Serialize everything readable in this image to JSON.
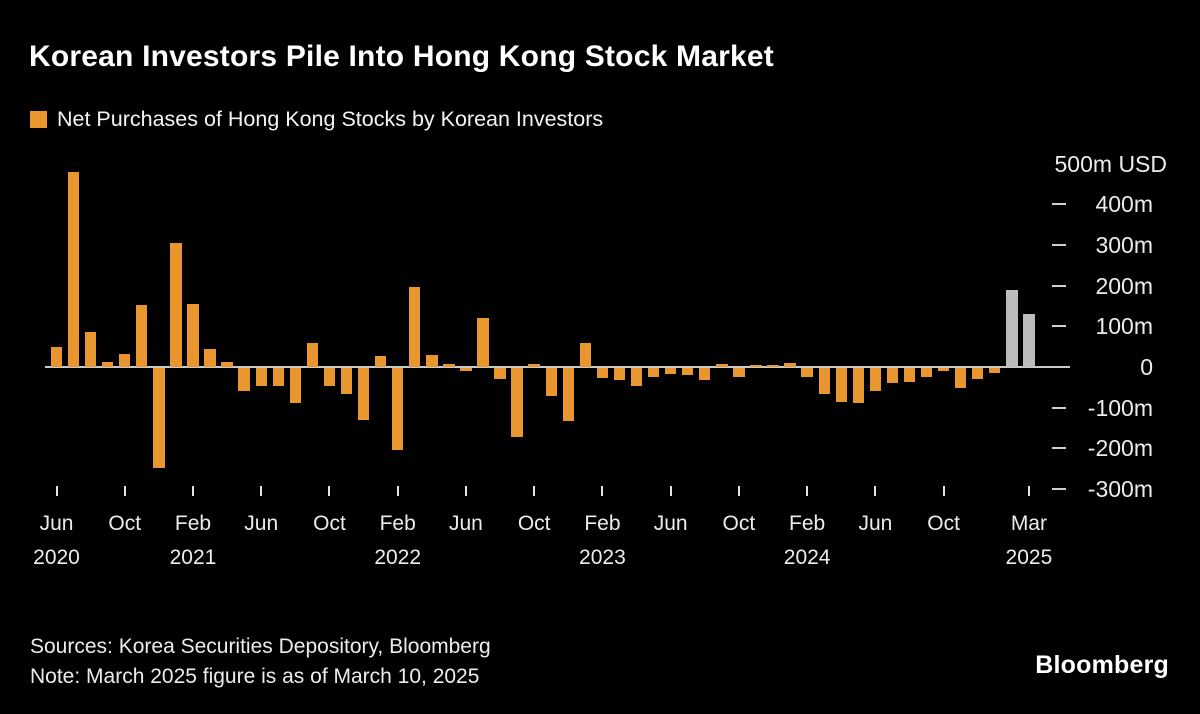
{
  "title": "Korean Investors Pile Into Hong Kong Stock Market",
  "legend": {
    "label": "Net Purchases of Hong Kong Stocks by Korean Investors",
    "swatch_color": "#e8962d"
  },
  "colors": {
    "background": "#000000",
    "bar_default": "#e8962d",
    "bar_provisional": "#babcbe",
    "axis_text": "#ececec",
    "zero_line": "#c6cacc"
  },
  "y_axis": {
    "unit_label": "500m USD",
    "ticks": [
      {
        "label": "400m",
        "value": 400
      },
      {
        "label": "300m",
        "value": 300
      },
      {
        "label": "200m",
        "value": 200
      },
      {
        "label": "100m",
        "value": 100
      },
      {
        "label": "0",
        "value": 0
      },
      {
        "label": "-100m",
        "value": -100
      },
      {
        "label": "-200m",
        "value": -200
      },
      {
        "label": "-300m",
        "value": -300
      }
    ]
  },
  "x_axis": {
    "ticks": [
      {
        "index": 0,
        "month": "Jun",
        "year": "2020"
      },
      {
        "index": 4,
        "month": "Oct",
        "year": ""
      },
      {
        "index": 8,
        "month": "Feb",
        "year": "2021"
      },
      {
        "index": 12,
        "month": "Jun",
        "year": ""
      },
      {
        "index": 16,
        "month": "Oct",
        "year": ""
      },
      {
        "index": 20,
        "month": "Feb",
        "year": "2022"
      },
      {
        "index": 24,
        "month": "Jun",
        "year": ""
      },
      {
        "index": 28,
        "month": "Oct",
        "year": ""
      },
      {
        "index": 32,
        "month": "Feb",
        "year": "2023"
      },
      {
        "index": 36,
        "month": "Jun",
        "year": ""
      },
      {
        "index": 40,
        "month": "Oct",
        "year": ""
      },
      {
        "index": 44,
        "month": "Feb",
        "year": "2024"
      },
      {
        "index": 48,
        "month": "Jun",
        "year": ""
      },
      {
        "index": 52,
        "month": "Oct",
        "year": ""
      },
      {
        "index": 57,
        "month": "Mar",
        "year": "2025"
      }
    ]
  },
  "chart_data": {
    "type": "bar",
    "title": "Korean Investors Pile Into Hong Kong Stock Market",
    "series_name": "Net Purchases of Hong Kong Stocks by Korean Investors",
    "unit": "million USD",
    "ylim": [
      -300,
      500
    ],
    "legend_position": "top-left",
    "grid": false,
    "x": [
      "Jun 2020",
      "Jul 2020",
      "Aug 2020",
      "Sep 2020",
      "Oct 2020",
      "Nov 2020",
      "Dec 2020",
      "Jan 2021",
      "Feb 2021",
      "Mar 2021",
      "Apr 2021",
      "May 2021",
      "Jun 2021",
      "Jul 2021",
      "Aug 2021",
      "Sep 2021",
      "Oct 2021",
      "Nov 2021",
      "Dec 2021",
      "Jan 2022",
      "Feb 2022",
      "Mar 2022",
      "Apr 2022",
      "May 2022",
      "Jun 2022",
      "Jul 2022",
      "Aug 2022",
      "Sep 2022",
      "Oct 2022",
      "Nov 2022",
      "Dec 2022",
      "Jan 2023",
      "Feb 2023",
      "Mar 2023",
      "Apr 2023",
      "May 2023",
      "Jun 2023",
      "Jul 2023",
      "Aug 2023",
      "Sep 2023",
      "Oct 2023",
      "Nov 2023",
      "Dec 2023",
      "Jan 2024",
      "Feb 2024",
      "Mar 2024",
      "Apr 2024",
      "May 2024",
      "Jun 2024",
      "Jul 2024",
      "Aug 2024",
      "Sep 2024",
      "Oct 2024",
      "Nov 2024",
      "Dec 2024",
      "Jan 2025",
      "Feb 2025",
      "Mar 2025"
    ],
    "values": [
      48,
      480,
      87,
      13,
      32,
      153,
      -245,
      305,
      155,
      43,
      12,
      -56,
      -43,
      -43,
      -85,
      60,
      -43,
      -63,
      -127,
      27,
      -201,
      197,
      30,
      8,
      -7,
      120,
      -28,
      -170,
      8,
      -68,
      -131,
      59,
      -25,
      -30,
      -43,
      -23,
      -15,
      -17,
      -29,
      8,
      -22,
      6,
      5,
      11,
      -23,
      -65,
      -84,
      -86,
      -57,
      -37,
      -34,
      -22,
      -8,
      -50,
      -26,
      -12,
      190,
      129
    ],
    "provisional_months": [
      "Feb 2025",
      "Mar 2025"
    ]
  },
  "footer": {
    "sources": "Sources: Korea Securities Depository, Bloomberg",
    "note": "Note: March 2025 figure is as of March 10, 2025"
  },
  "logo_text": "Bloomberg"
}
